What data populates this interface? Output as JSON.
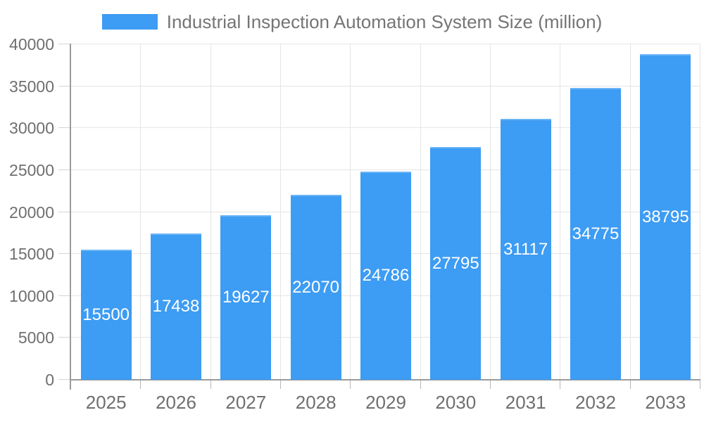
{
  "chart_data": {
    "type": "bar",
    "title": "Industrial Inspection Automation System Size (million)",
    "categories": [
      "2025",
      "2026",
      "2027",
      "2028",
      "2029",
      "2030",
      "2031",
      "2032",
      "2033"
    ],
    "values": [
      15500,
      17438,
      19627,
      22070,
      24786,
      27795,
      31117,
      34775,
      38795
    ],
    "xlabel": "",
    "ylabel": "",
    "ylim": [
      0,
      40000
    ],
    "ytick_step": 5000,
    "yticks": [
      0,
      5000,
      10000,
      15000,
      20000,
      25000,
      30000,
      35000,
      40000
    ],
    "grid": true,
    "legend_position": "top",
    "value_label_position": "inside-center"
  },
  "legend": {
    "swatch_icon": "legend-swatch",
    "label": "Industrial Inspection Automation System Size (million)"
  },
  "colors": {
    "bar_fill": "#3d9cf3",
    "bar_border": "#6ab4f7",
    "grid": "#e5e5e5",
    "y_tick": "#d4d4d4",
    "x_tick": "#b6b6b6",
    "axis": "#9a9a9a",
    "tick_label": "#6f6f6f",
    "legend_text": "#757575",
    "value_label": "#ffffff",
    "background": "#ffffff"
  }
}
